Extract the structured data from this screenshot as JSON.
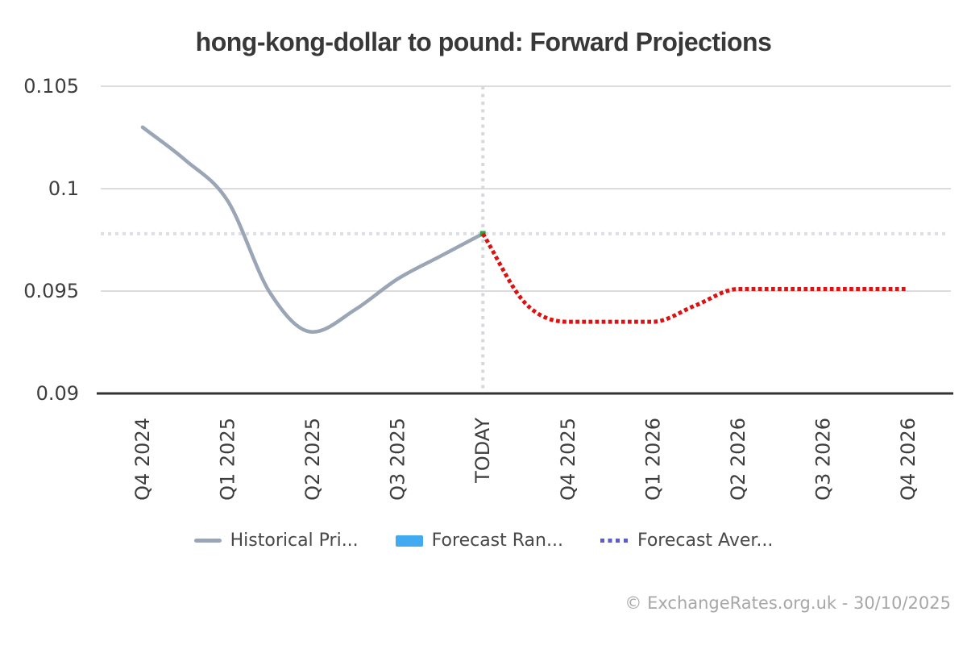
{
  "page": {
    "title": "hong-kong-dollar to pound: Forward Projections",
    "watermark": "© ExchangeRates.org.uk - 30/10/2025"
  },
  "legend": {
    "items": [
      {
        "label": "Historical Pri...",
        "swatch": "line",
        "color": "#9aa5b6"
      },
      {
        "label": "Forecast Ran...",
        "swatch": "rect",
        "color": "#41aaf0"
      },
      {
        "label": "Forecast Aver...",
        "swatch": "dotted",
        "color": "#5d5dc5"
      }
    ]
  },
  "chart_data": {
    "type": "line",
    "title": "hong-kong-dollar to pound: Forward Projections",
    "categories": [
      "Q4 2024",
      "Q1 2025",
      "Q2 2025",
      "Q3 2025",
      "TODAY",
      "Q4 2025",
      "Q1 2026",
      "Q2 2026",
      "Q3 2026",
      "Q4 2026"
    ],
    "xlabel": "",
    "ylabel": "",
    "ylim": [
      0.09,
      0.105
    ],
    "y_ticks": [
      0.105,
      0.1,
      0.095,
      0.09
    ],
    "y_tick_labels": [
      "0.105",
      "0.1",
      "0.095",
      "0.09"
    ],
    "grid": "horizontal-on",
    "legend_position": "bottom",
    "series": [
      {
        "name": "Historical Price",
        "legend_label": "Historical Pri...",
        "color": "#9aa5b6",
        "style": "solid",
        "start_index": 0,
        "values": [
          0.103,
          0.0994,
          0.093,
          0.0956,
          0.0978
        ],
        "detail_points": [
          [
            0,
            0.103
          ],
          [
            0.5,
            0.1014
          ],
          [
            1,
            0.0994
          ],
          [
            1.5,
            0.0949
          ],
          [
            2,
            0.093
          ],
          [
            2.5,
            0.0941
          ],
          [
            3,
            0.0956
          ],
          [
            3.5,
            0.0967
          ],
          [
            4,
            0.0978
          ]
        ]
      },
      {
        "name": "Forecast Average",
        "legend_label": "Forecast Aver...",
        "color": "#dd1111",
        "style": "dotted",
        "start_index": 4,
        "values": [
          0.0978,
          0.0935,
          0.0935,
          0.0951,
          0.0951,
          0.0951
        ],
        "detail_points": [
          [
            4,
            0.0978
          ],
          [
            4.5,
            0.0944
          ],
          [
            5,
            0.0935
          ],
          [
            5.5,
            0.0935
          ],
          [
            6,
            0.0935
          ],
          [
            6.5,
            0.0943
          ],
          [
            7,
            0.0951
          ],
          [
            8,
            0.0951
          ],
          [
            9,
            0.0951
          ]
        ]
      }
    ],
    "annotations": {
      "today_category": "TODAY",
      "today_index": 4,
      "current_level": 0.0978,
      "current_level_line_color": "#dcdfe4",
      "today_line_color": "#d5d8dd",
      "junction_marker_color": "#2f9e44"
    },
    "axis_colors": {
      "gridline": "#dcdcdc",
      "bottom_axis": "#333333",
      "tick_label": "#3d3d3d"
    }
  }
}
